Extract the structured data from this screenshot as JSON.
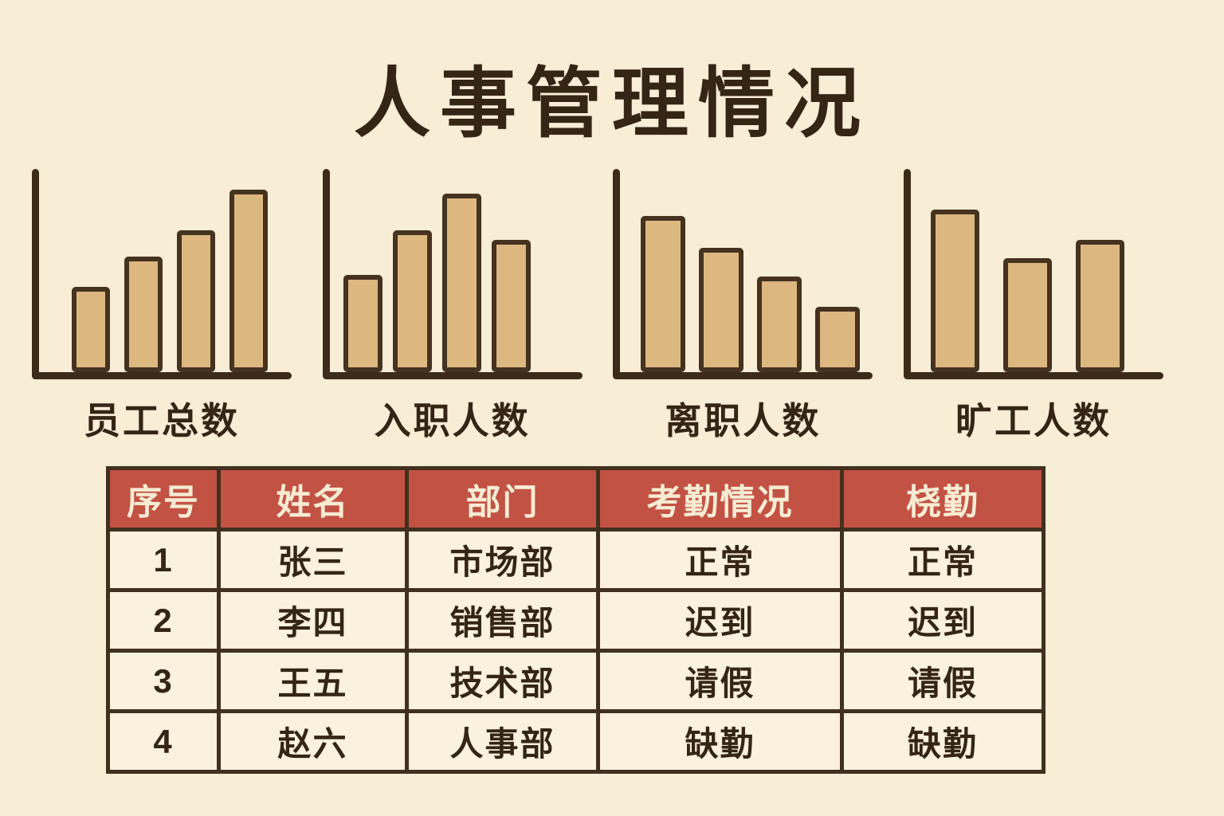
{
  "page": {
    "title": "人事管理情况"
  },
  "colors": {
    "background": "#f8edd5",
    "ink": "#342515",
    "bar_fill": "#dcb780",
    "bar_stroke": "#45321f",
    "axis": "#3c2b19",
    "table_border": "#42301e",
    "header_bg": "#c25244",
    "header_text": "#f7ecd3",
    "cell_bg": "#fbf2dd"
  },
  "chart_data": [
    {
      "type": "bar",
      "title": "员工总数",
      "values": [
        42,
        57,
        70,
        90
      ],
      "ylim": [
        0,
        100
      ],
      "xlabel": "",
      "ylabel": "",
      "note": "hand-drawn style mini chart; bars unlabeled, heights estimated as % of axis height"
    },
    {
      "type": "bar",
      "title": "入职人数",
      "values": [
        48,
        70,
        88,
        65
      ],
      "ylim": [
        0,
        100
      ],
      "xlabel": "",
      "ylabel": "",
      "note": "hand-drawn style mini chart; bars unlabeled, heights estimated as % of axis height"
    },
    {
      "type": "bar",
      "title": "离职人数",
      "values": [
        77,
        61,
        47,
        32
      ],
      "ylim": [
        0,
        100
      ],
      "xlabel": "",
      "ylabel": "",
      "note": "hand-drawn style mini chart; bars unlabeled, heights estimated as % of axis height"
    },
    {
      "type": "bar",
      "title": "旷工人数",
      "values": [
        80,
        56,
        65
      ],
      "ylim": [
        0,
        100
      ],
      "xlabel": "",
      "ylabel": "",
      "note": "hand-drawn style mini chart; bars unlabeled, heights estimated as % of axis height"
    }
  ],
  "table": {
    "headers": [
      "序号",
      "姓名",
      "部门",
      "考勤情况",
      "桡勤"
    ],
    "rows": [
      [
        "1",
        "张三",
        "市场部",
        "正常",
        "正常"
      ],
      [
        "2",
        "李四",
        "销售部",
        "迟到",
        "迟到"
      ],
      [
        "3",
        "王五",
        "技术部",
        "请假",
        "请假"
      ],
      [
        "4",
        "赵六",
        "人事部",
        "缺勤",
        "缺勤"
      ]
    ]
  }
}
